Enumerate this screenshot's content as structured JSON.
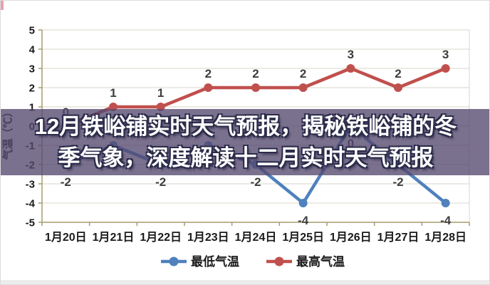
{
  "overlay": {
    "headline_line1": "12月铁峪铺实时天气预报，揭秘铁峪铺的冬",
    "headline_line2": "季气象，深度解读十二月实时天气预报",
    "background_color": "rgba(85,73,112,0.78)",
    "text_color": "#ffffff",
    "outline_color": "#2b2b4a"
  },
  "chart_data": {
    "type": "line",
    "title": "",
    "categories": [
      "1月20日",
      "1月21日",
      "1月22日",
      "1月23日",
      "1月24日",
      "1月25日",
      "1月26日",
      "1月27日",
      "1月28日"
    ],
    "series": [
      {
        "name": "最低气温",
        "color": "#4F81BD",
        "values": [
          -2,
          -1,
          -2,
          -1,
          -2,
          -4,
          0,
          -2,
          -4
        ],
        "label_position": "below"
      },
      {
        "name": "最高气温",
        "color": "#C0504D",
        "values": [
          0,
          1,
          1,
          2,
          2,
          2,
          3,
          2,
          3
        ],
        "label_position": "above"
      }
    ],
    "xlabel": "",
    "ylabel": "气温（℃）",
    "ylim": [
      -5,
      5
    ],
    "ytick_interval": 1,
    "yticks": [
      5,
      4,
      3,
      2,
      1,
      0,
      -1,
      -2,
      -3,
      -4,
      -5
    ],
    "grid": true,
    "legend_position": "bottom",
    "colors": {
      "axis": "#a59c6e",
      "gridline": "#dad6c8",
      "data_label": "#3d3d3d",
      "tick_label": "#1a1a1a"
    }
  }
}
